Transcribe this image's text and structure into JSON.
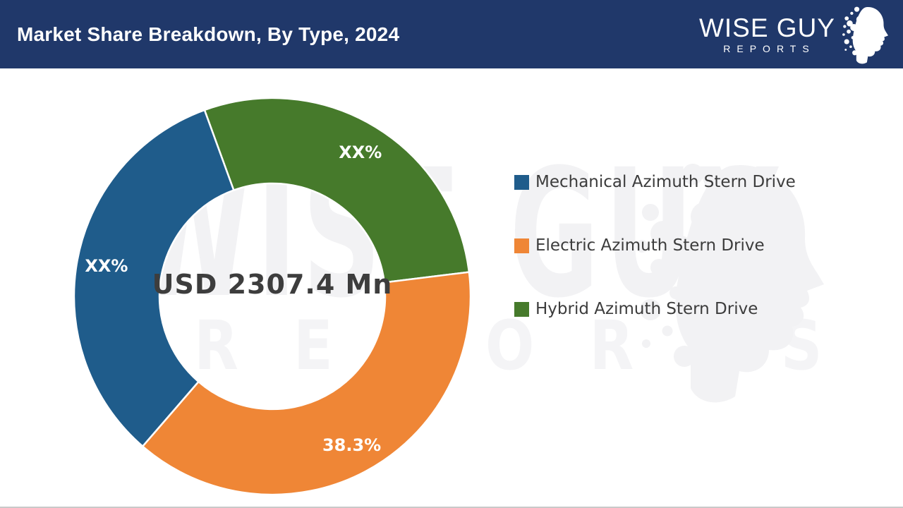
{
  "header": {
    "title": "Market Share Breakdown, By Type, 2024",
    "logo": {
      "line1": "WISE GUY",
      "line2": "REPORTS"
    }
  },
  "watermark": {
    "line1": "WISE GUY",
    "line2": "REPORTS"
  },
  "chart_data": {
    "type": "pie",
    "subtype": "donut",
    "title": "Market Share Breakdown, By Type, 2024",
    "center_label": "USD 2307.4 Mn",
    "start_angle_deg": -20,
    "slices": [
      {
        "name": "Hybrid Azimuth Stern Drive",
        "percent": 28.6,
        "label": "XX%",
        "color": "#467a2b"
      },
      {
        "name": "Electric Azimuth Stern Drive",
        "percent": 38.3,
        "label": "38.3%",
        "color": "#ef8636"
      },
      {
        "name": "Mechanical Azimuth Stern Drive",
        "percent": 33.1,
        "label": "XX%",
        "color": "#1f5c8b"
      }
    ],
    "legend": {
      "position": "right",
      "items": [
        {
          "label": "Mechanical Azimuth Stern Drive",
          "color": "#1f5c8b"
        },
        {
          "label": "Electric Azimuth Stern Drive",
          "color": "#ef8636"
        },
        {
          "label": "Hybrid Azimuth Stern Drive",
          "color": "#467a2b"
        }
      ]
    }
  },
  "colors": {
    "header_bg": "#20386a",
    "title_text": "#ffffff",
    "center_text": "#3d3d3d",
    "legend_text": "#3c3c3c",
    "watermark": "#f2f2f4"
  }
}
